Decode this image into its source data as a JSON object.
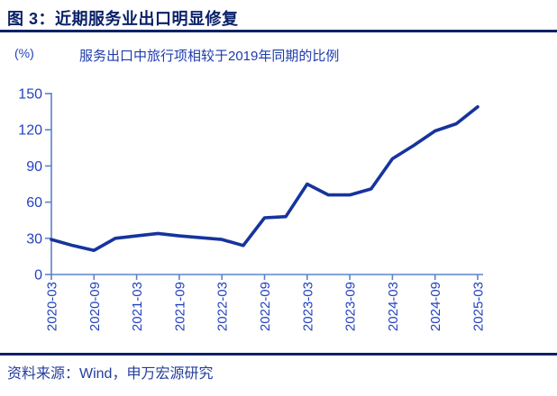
{
  "header": {
    "title": "图 3：近期服务业出口明显修复"
  },
  "chart": {
    "unit_label": "(%)",
    "title": "服务出口中旅行项相较于2019年同期的比例"
  },
  "footer": {
    "source": "资料来源：Wind，申万宏源研究"
  },
  "colors": {
    "navy": "#0A2168",
    "text_blue": "#2342BE",
    "title_blue": "#1E3BB0",
    "line_blue": "#16349C",
    "axis_blue": "#5B83C8"
  },
  "chart_data": {
    "type": "line",
    "title": "服务出口中旅行项相较于2019年同期的比例",
    "ylabel": "(%)",
    "x": [
      "2020-03",
      "2020-06",
      "2020-09",
      "2020-12",
      "2021-03",
      "2021-06",
      "2021-09",
      "2021-12",
      "2022-03",
      "2022-06",
      "2022-09",
      "2022-12",
      "2023-03",
      "2023-06",
      "2023-09",
      "2023-12",
      "2024-03",
      "2024-06",
      "2024-09",
      "2024-12",
      "2025-03"
    ],
    "values": [
      29,
      24,
      20,
      30,
      32,
      34,
      32,
      30.5,
      29,
      24,
      47,
      48,
      75,
      66,
      66,
      71,
      96,
      107,
      119,
      125,
      139
    ],
    "xtick_labels": [
      "2020-03",
      "2020-09",
      "2021-03",
      "2021-09",
      "2022-03",
      "2022-09",
      "2023-03",
      "2023-09",
      "2024-03",
      "2024-09",
      "2025-03"
    ],
    "yticks": [
      0,
      30,
      60,
      90,
      120,
      150
    ],
    "ylim": [
      0,
      150
    ],
    "grid": false,
    "legend_position": "none"
  }
}
